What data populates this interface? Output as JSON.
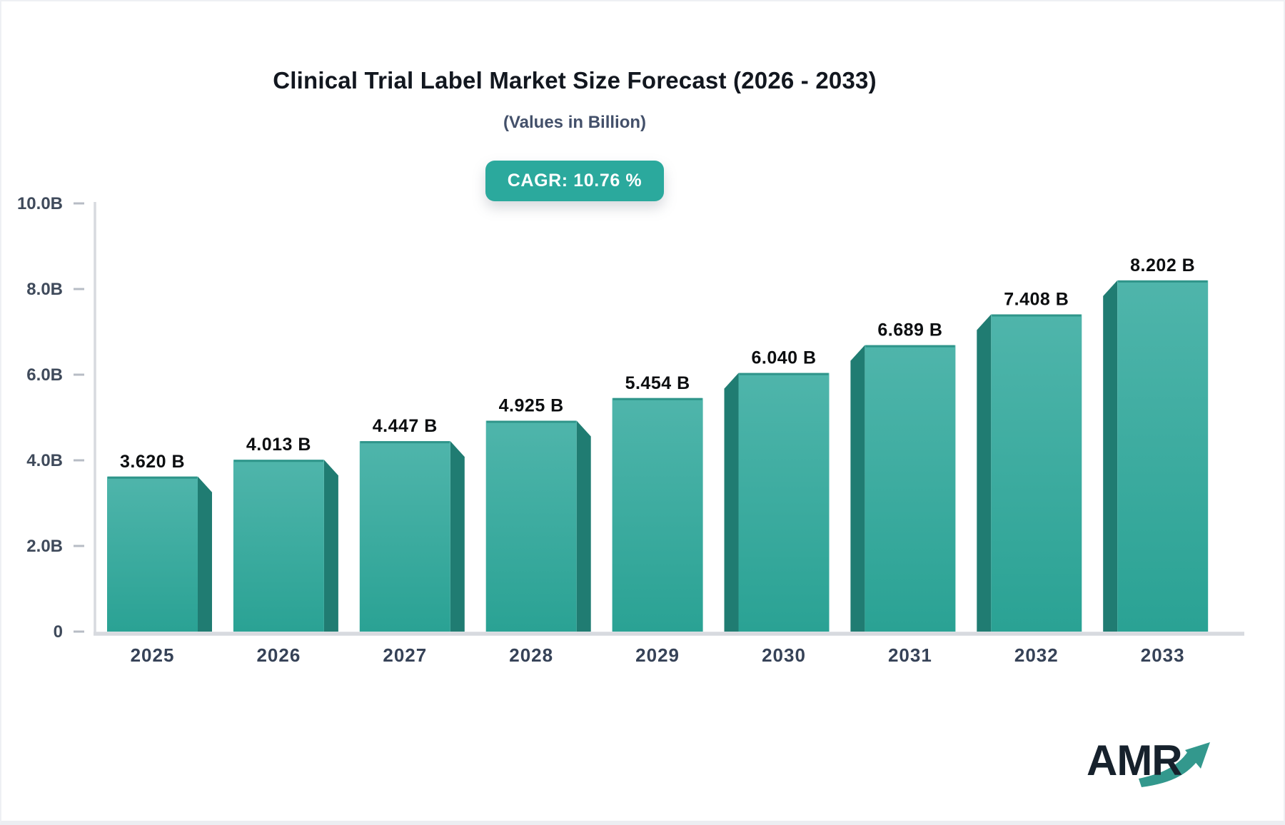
{
  "brand": {
    "logo_text": "AMR"
  },
  "colors": {
    "badge_bg": "#2BA99D",
    "badge_text": "#FFFFFF",
    "title": "#12171F",
    "subtitle": "#43506A",
    "bar_face_top": "#4FB5AB",
    "bar_face_bottom": "#2AA294",
    "bar_side": "#207C72",
    "bar_top_edge": "#2F958A",
    "axis_line": "#D7DADF",
    "tick_mark": "#B7BCC5",
    "tick_label": "#3F4A5B",
    "year_label": "#364257",
    "value_label": "#0C0E10",
    "logo_dark": "#16212C",
    "logo_teal": "#33988D"
  },
  "chart_data": {
    "type": "bar",
    "title": "Clinical Trial Label Market Size Forecast (2026 - 2033)",
    "subtitle": "(Values in Billion)",
    "cagr_label": "CAGR: 10.76 %",
    "categories": [
      "2025",
      "2026",
      "2027",
      "2028",
      "2029",
      "2030",
      "2031",
      "2032",
      "2033"
    ],
    "values": [
      3.62,
      4.013,
      4.447,
      4.925,
      5.454,
      6.04,
      6.689,
      7.408,
      8.202
    ],
    "value_labels": [
      "3.620 B",
      "4.013 B",
      "4.447 B",
      "4.925 B",
      "5.454 B",
      "6.040 B",
      "6.689 B",
      "7.408 B",
      "8.202 B"
    ],
    "y_ticks": [
      {
        "label": "0",
        "value": 0
      },
      {
        "label": "2.0B",
        "value": 2
      },
      {
        "label": "4.0B",
        "value": 4
      },
      {
        "label": "6.0B",
        "value": 6
      },
      {
        "label": "8.0B",
        "value": 8
      },
      {
        "label": "10.0B",
        "value": 10
      }
    ],
    "ylim": [
      0,
      10
    ],
    "grid": false,
    "legend": false
  }
}
